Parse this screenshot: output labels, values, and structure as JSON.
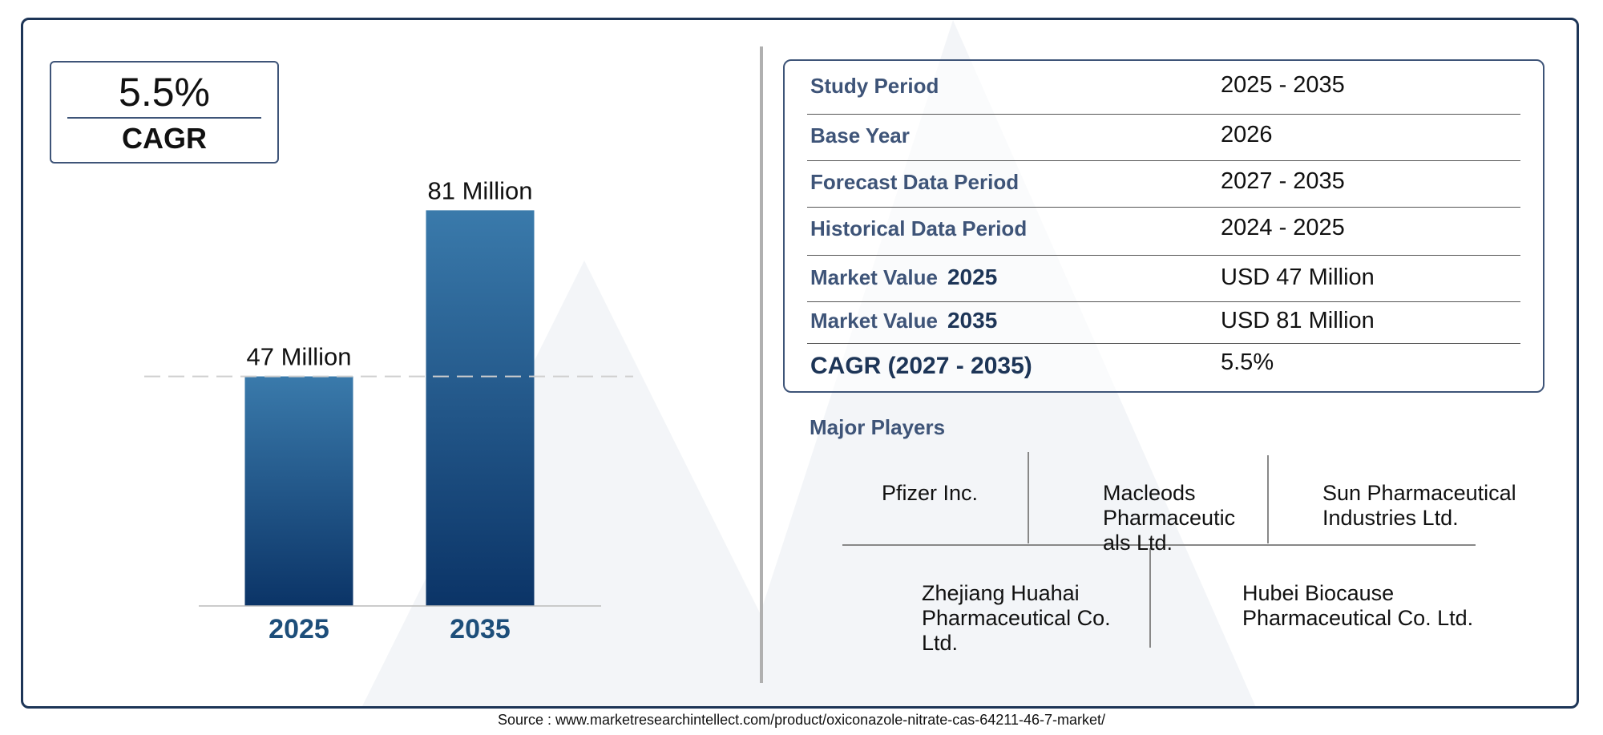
{
  "cagr_box": {
    "value": "5.5%",
    "label": "CAGR"
  },
  "chart_data": {
    "type": "bar",
    "categories": [
      "2025",
      "2035"
    ],
    "values": [
      47,
      81
    ],
    "data_labels": [
      "47 Million",
      "81 Million"
    ],
    "title": "",
    "xlabel": "",
    "ylabel": "",
    "ylim": [
      0,
      85
    ],
    "grid": false,
    "reference_line": 47,
    "colors": {
      "bar_top": "#3a7aab",
      "bar_bottom": "#0b3467",
      "axis_label": "#1d4e7a"
    }
  },
  "info_table": {
    "rows": [
      {
        "label": "Study Period",
        "year": "",
        "value": "2025 - 2035"
      },
      {
        "label": "Base Year",
        "year": "",
        "value": "2026"
      },
      {
        "label": "Forecast Data Period",
        "year": "",
        "value": "2027 - 2035"
      },
      {
        "label": "Historical Data Period",
        "year": "",
        "value": "2024 - 2025"
      },
      {
        "label": "Market Value",
        "year": "2025",
        "value": "USD 47 Million"
      },
      {
        "label": "Market Value",
        "year": "2035",
        "value": "USD 81 Million"
      },
      {
        "label": "CAGR (2027 - 2035)",
        "year": "",
        "value": "5.5%"
      }
    ]
  },
  "major_players": {
    "title": "Major Players",
    "players": [
      "Pfizer Inc.",
      "Macleods Pharmaceutic als Ltd.",
      "Sun Pharmaceutical Industries Ltd.",
      "Zhejiang Huahai Pharmaceutical Co. Ltd.",
      "Hubei Biocause Pharmaceutical Co. Ltd."
    ]
  },
  "source": "Source : www.marketresearchintellect.com/product/oxiconazole-nitrate-cas-64211-46-7-market/",
  "colors": {
    "frame": "#1d3557",
    "label": "#3e5478",
    "watermark": "#f1f3f7"
  }
}
